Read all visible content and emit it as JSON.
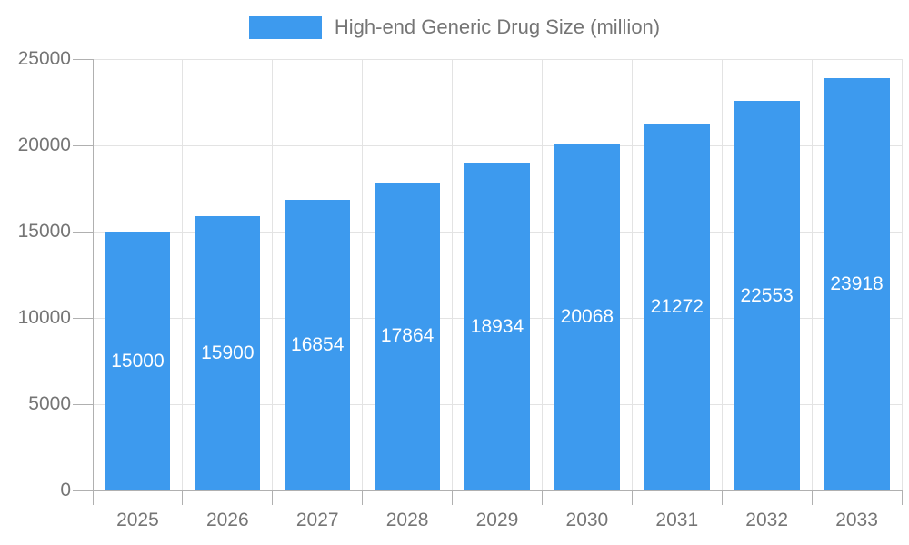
{
  "legend": {
    "label": "High-end Generic Drug Size (million)"
  },
  "chart_data": {
    "type": "bar",
    "title": "",
    "xlabel": "",
    "ylabel": "",
    "categories": [
      "2025",
      "2026",
      "2027",
      "2028",
      "2029",
      "2030",
      "2031",
      "2032",
      "2033"
    ],
    "values": [
      15000,
      15900,
      16854,
      17864,
      18934,
      20068,
      21272,
      22553,
      23918
    ],
    "series_name": "High-end Generic Drug Size (million)",
    "ylim": [
      0,
      25000
    ],
    "y_ticks": [
      0,
      5000,
      10000,
      15000,
      20000,
      25000
    ],
    "grid": true,
    "legend_position": "top",
    "colors": {
      "bar": "#3D9AEE",
      "value_label": "#ffffff",
      "axis_text": "#757575",
      "axis_line": "#b0b0b0",
      "gridline": "#e3e3e3",
      "background": "#ffffff"
    }
  }
}
